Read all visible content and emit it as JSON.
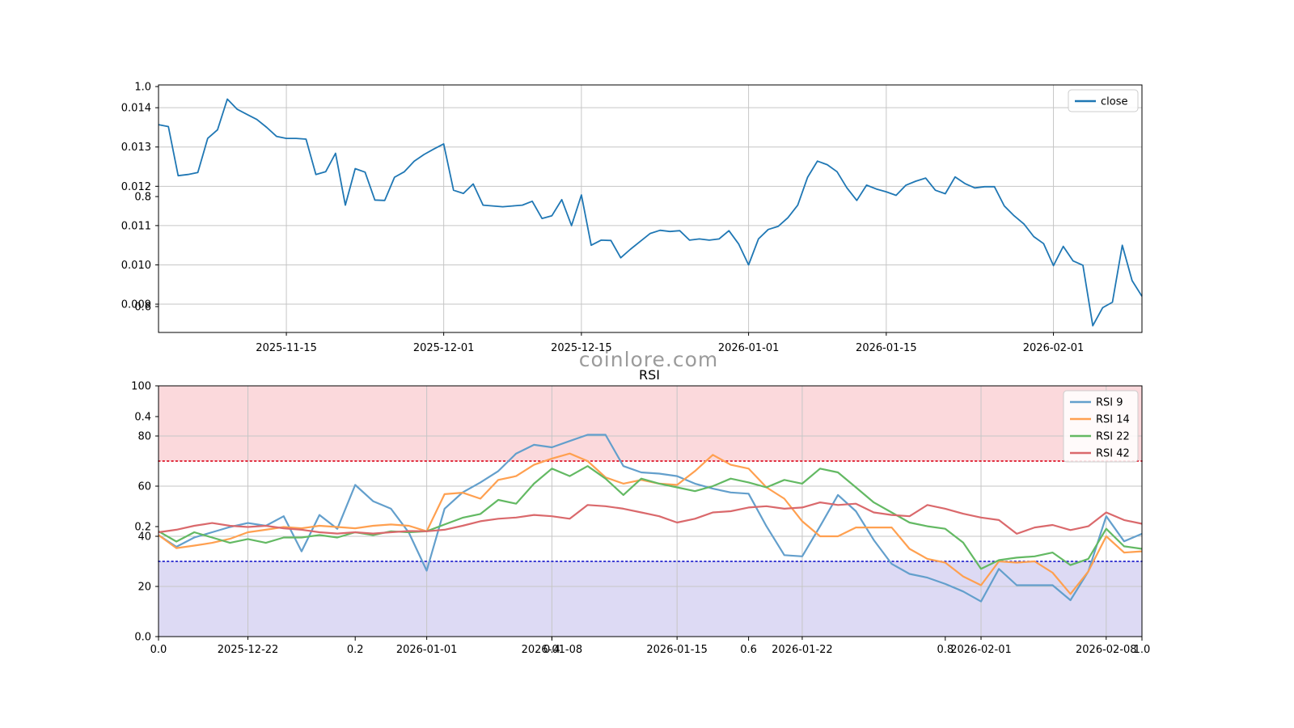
{
  "watermark": "coinlore.com",
  "figure_axes": {
    "x_tick_labels": [
      "0.0",
      "0.2",
      "0.4",
      "0.6",
      "0.8",
      "1.0"
    ],
    "y_tick_labels": [
      "1.0",
      "0.8",
      "0.6",
      "0.4",
      "0.2",
      "0.0"
    ]
  },
  "colors": {
    "close": "#1f77b4",
    "rsi9": "#639fcc",
    "rsi14": "#ffa050",
    "rsi22": "#63b963",
    "rsi42": "#da696c",
    "overbought_band": "#fbd9dc",
    "oversold_band": "#dddaf4",
    "overbought_line": "#dc1428",
    "oversold_line": "#2323cd",
    "grid": "#c6c6c6"
  },
  "chart_data": [
    {
      "id": "price",
      "type": "line",
      "title": "",
      "points": 101,
      "x_start_date": "2025-11-02",
      "x_end_date": "2026-02-10",
      "x_tick_dates": [
        "2025-11-15",
        "2025-12-01",
        "2025-12-15",
        "2026-01-01",
        "2026-01-15",
        "2026-02-01"
      ],
      "y_ticks": [
        0.014,
        0.013,
        0.012,
        0.011,
        0.01,
        0.009
      ],
      "y_tick_labels": [
        "0.014",
        "0.013",
        "0.012",
        "0.011",
        "0.010",
        "0.009"
      ],
      "ylim": [
        0.00828,
        0.01458
      ],
      "grid": true,
      "legend": {
        "position": "upper right",
        "entries": [
          {
            "label": "close",
            "color": "#1f77b4"
          }
        ]
      },
      "series": [
        {
          "name": "close",
          "color": "#1f77b4",
          "values": [
            0.01357,
            0.01352,
            0.01227,
            0.0123,
            0.01235,
            0.01322,
            0.01344,
            0.01422,
            0.01396,
            0.01383,
            0.0137,
            0.0135,
            0.01327,
            0.01322,
            0.01322,
            0.0132,
            0.0123,
            0.01237,
            0.01284,
            0.01152,
            0.01245,
            0.01236,
            0.01165,
            0.01164,
            0.01223,
            0.01237,
            0.01264,
            0.01281,
            0.01295,
            0.01308,
            0.0119,
            0.01182,
            0.01206,
            0.01152,
            0.0115,
            0.01148,
            0.0115,
            0.01152,
            0.01162,
            0.01118,
            0.01125,
            0.01166,
            0.011,
            0.01178,
            0.0105,
            0.01063,
            0.01062,
            0.01018,
            0.0104,
            0.0106,
            0.0108,
            0.01088,
            0.01085,
            0.01087,
            0.01063,
            0.01066,
            0.01063,
            0.01066,
            0.01087,
            0.01053,
            0.01,
            0.01066,
            0.0109,
            0.01098,
            0.0112,
            0.01152,
            0.01223,
            0.01264,
            0.01255,
            0.01237,
            0.01196,
            0.01164,
            0.01203,
            0.01193,
            0.01186,
            0.01177,
            0.01203,
            0.01213,
            0.01221,
            0.0119,
            0.01181,
            0.01224,
            0.01207,
            0.01196,
            0.01199,
            0.01199,
            0.0115,
            0.01125,
            0.01104,
            0.01072,
            0.01054,
            0.00998,
            0.01047,
            0.0101,
            0.00999,
            0.00845,
            0.00891,
            0.00905,
            0.0105,
            0.0096,
            0.0092
          ]
        }
      ]
    },
    {
      "id": "rsi",
      "type": "line",
      "title": "RSI",
      "points": 56,
      "x_start_date": "2025-12-17",
      "x_end_date": "2026-02-10",
      "x_tick_dates": [
        "2025-12-22",
        "2026-01-01",
        "2026-01-08",
        "2026-01-15",
        "2026-01-22",
        "2026-02-01",
        "2026-02-08"
      ],
      "y_ticks": [
        100,
        80,
        60,
        40,
        20
      ],
      "y_tick_labels": [
        "100",
        "80",
        "60",
        "40",
        "20"
      ],
      "ylim": [
        0,
        100
      ],
      "grid": true,
      "bands": [
        {
          "name": "overbought-band",
          "from": 70,
          "to": 100,
          "color": "#fbd9dc"
        },
        {
          "name": "oversold-band",
          "from": 0,
          "to": 30,
          "color": "#dddaf4"
        }
      ],
      "hlines": [
        {
          "name": "overbought-line",
          "y": 70,
          "color": "#dc1428"
        },
        {
          "name": "oversold-line",
          "y": 30,
          "color": "#2323cd"
        }
      ],
      "legend": {
        "position": "upper right",
        "entries": [
          {
            "label": "RSI 9",
            "color": "#639fcc"
          },
          {
            "label": "RSI 14",
            "color": "#ffa050"
          },
          {
            "label": "RSI 22",
            "color": "#63b963"
          },
          {
            "label": "RSI 42",
            "color": "#da696c"
          }
        ]
      },
      "series": [
        {
          "name": "RSI 9",
          "color": "#639fcc",
          "values": [
            40.5,
            35.8,
            39.5,
            41.6,
            43.7,
            45.3,
            44.2,
            48.0,
            34.0,
            48.5,
            43.0,
            60.5,
            54.0,
            51.0,
            41.5,
            26.3,
            51.0,
            57.5,
            61.5,
            66.0,
            73.0,
            76.5,
            75.5,
            78.0,
            80.5,
            80.5,
            68.0,
            65.5,
            65.0,
            64.0,
            61.0,
            59.0,
            57.5,
            57.0,
            44.0,
            32.5,
            32.0,
            44.0,
            56.5,
            50.0,
            38.5,
            29.0,
            25.0,
            23.5,
            21.0,
            18.0,
            14.0,
            27.0,
            20.5,
            20.5,
            20.5,
            14.5,
            26.0,
            48.0,
            38.0,
            41.0
          ]
        },
        {
          "name": "RSI 14",
          "color": "#ffa050",
          "values": [
            40.5,
            35.3,
            36.3,
            37.4,
            39.0,
            41.6,
            42.6,
            43.7,
            43.2,
            44.2,
            43.7,
            43.2,
            44.2,
            44.7,
            44.2,
            42.0,
            56.8,
            57.4,
            55.0,
            62.5,
            64.0,
            68.5,
            71.0,
            73.0,
            70.0,
            63.5,
            61.0,
            62.5,
            61.0,
            60.5,
            66.0,
            72.5,
            68.5,
            67.0,
            59.5,
            55.0,
            46.0,
            40.0,
            40.0,
            43.5,
            43.5,
            43.5,
            35.0,
            31.0,
            29.5,
            24.0,
            20.5,
            30.0,
            29.5,
            30.0,
            25.5,
            17.0,
            26.0,
            40.0,
            33.5,
            34.0
          ]
        },
        {
          "name": "RSI 22",
          "color": "#63b963",
          "values": [
            42.0,
            37.9,
            41.6,
            39.5,
            37.4,
            38.9,
            37.4,
            39.5,
            39.5,
            40.5,
            39.5,
            41.6,
            40.5,
            42.0,
            41.6,
            42.0,
            44.7,
            47.4,
            48.9,
            54.5,
            53.0,
            61.0,
            67.0,
            64.0,
            68.0,
            63.0,
            56.5,
            63.0,
            61.0,
            59.5,
            58.0,
            60.0,
            63.0,
            61.5,
            59.5,
            62.5,
            61.0,
            67.0,
            65.5,
            59.5,
            53.5,
            49.5,
            45.5,
            44.0,
            43.0,
            37.5,
            27.0,
            30.5,
            31.5,
            32.0,
            33.5,
            28.5,
            31.0,
            43.0,
            36.0,
            35.0
          ]
        },
        {
          "name": "RSI 42",
          "color": "#da696c",
          "values": [
            41.6,
            42.6,
            44.2,
            45.3,
            44.2,
            43.7,
            44.2,
            43.2,
            42.6,
            41.6,
            41.1,
            41.6,
            41.1,
            41.6,
            42.1,
            42.0,
            42.6,
            44.2,
            46.0,
            47.0,
            47.5,
            48.5,
            48.0,
            47.0,
            52.5,
            52.0,
            51.0,
            49.5,
            48.0,
            45.5,
            47.0,
            49.5,
            50.0,
            51.5,
            52.0,
            51.0,
            51.5,
            53.5,
            52.5,
            53.0,
            49.5,
            48.5,
            48.0,
            52.5,
            51.0,
            49.0,
            47.5,
            46.5,
            41.0,
            43.5,
            44.5,
            42.5,
            44.0,
            49.5,
            46.5,
            45.0
          ]
        }
      ]
    }
  ]
}
